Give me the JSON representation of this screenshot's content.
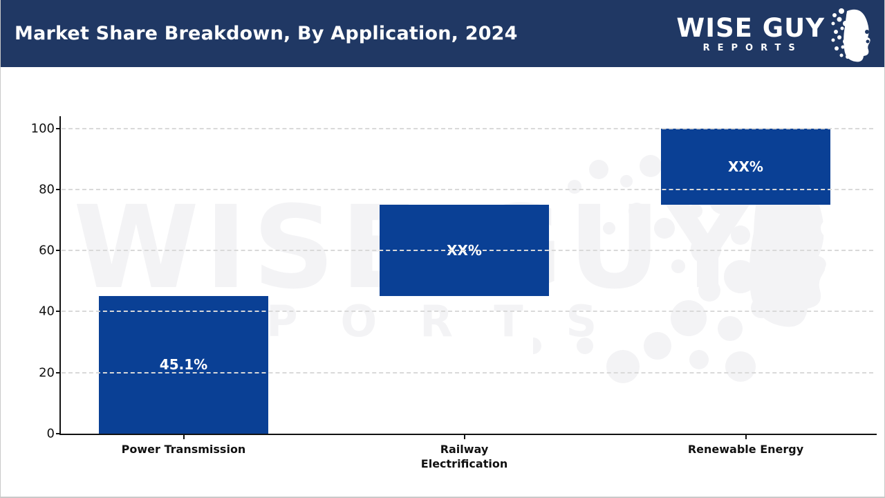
{
  "header": {
    "title": "Market Share Breakdown, By Application, 2024",
    "bg_color": "#203864",
    "logo": {
      "line1": "WISE GUY",
      "line2": "REPORTS"
    }
  },
  "watermark": {
    "line1": "WISE GUY",
    "line2": "REPORTS"
  },
  "colors": {
    "bar_blue": "#0A4095",
    "header_navy": "#203864",
    "grid_gray": "#d9d9d9",
    "axis_black": "#111111",
    "bar_label_white": "#ffffff",
    "watermark_gray": "#f3f3f5"
  },
  "chart_data": {
    "type": "bar",
    "subtype": "floating-segment-bars (waterfall style, segments stack to 100%)",
    "title": "Market Share Breakdown, By Application, 2024",
    "categories": [
      "Power Transmission",
      "Railway Electrification",
      "Renewable Energy"
    ],
    "bars": [
      {
        "category": "Power Transmission",
        "tick_label": "Power Transmission",
        "start": 0,
        "end": 45.1,
        "value": 45.1,
        "value_label": "45.1%"
      },
      {
        "category": "Railway Electrification",
        "tick_label": "Railway\nElectrification",
        "start": 45.1,
        "end": 75,
        "value": 29.9,
        "value_label": "XX%"
      },
      {
        "category": "Renewable Energy",
        "tick_label": "Renewable Energy",
        "start": 75,
        "end": 100,
        "value": 25,
        "value_label": "XX%"
      }
    ],
    "xlabel": "",
    "ylabel": "",
    "ylim": [
      0,
      100
    ],
    "yticks": [
      0,
      20,
      40,
      60,
      80,
      100
    ],
    "grid": "horizontal dashed, drawn over bars",
    "legend": "none"
  }
}
